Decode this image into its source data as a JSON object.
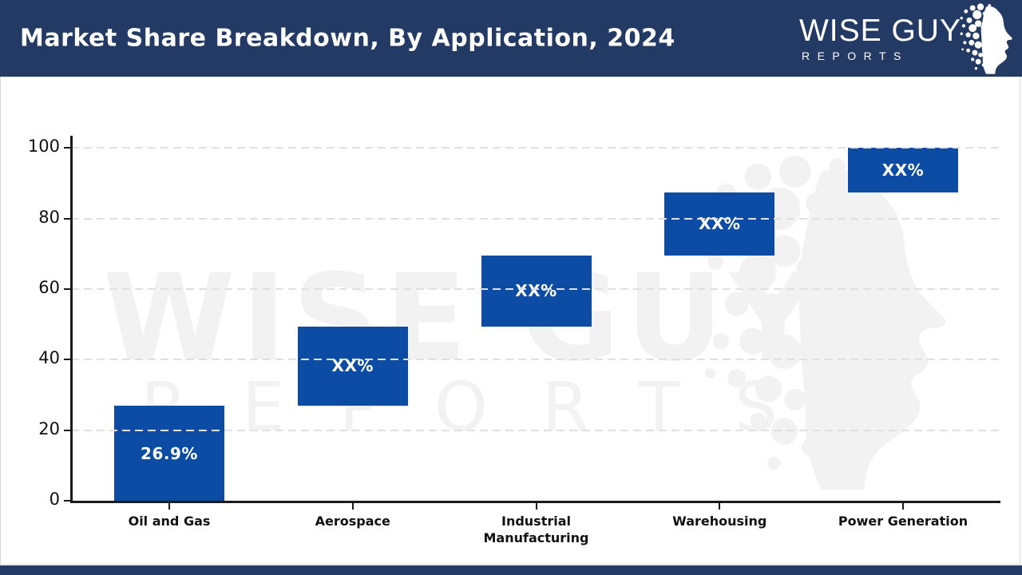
{
  "header": {
    "title": "Market Share Breakdown, By Application, 2024",
    "logo": {
      "line1": "WISE GUY",
      "line2": "REPORTS"
    }
  },
  "watermark": {
    "line1": "WISE GUY",
    "line2": "REPORTS"
  },
  "colors": {
    "header_bg": "#223a64",
    "footer_bg": "#223a64",
    "bar": "#0d4ca4",
    "bar_label": "#ffffff",
    "gridline": "#e0e0e0",
    "axis": "#1a1a1a",
    "tick_label": "#111111",
    "watermark": "#f2f2f2",
    "background": "#ffffff"
  },
  "chart_data": {
    "type": "bar",
    "subtype": "waterfall-floating-bars",
    "title": "Market Share Breakdown, By Application, 2024",
    "xlabel": "",
    "ylabel": "",
    "categories": [
      "Oil and Gas",
      "Aerospace",
      "Industrial Manufacturing",
      "Warehousing",
      "Power Generation"
    ],
    "segments": [
      {
        "category": "Oil and Gas",
        "start": 0,
        "end": 26.9,
        "span": 26.9,
        "label": "26.9%"
      },
      {
        "category": "Aerospace",
        "start": 26.9,
        "end": 49.4,
        "span": 22.5,
        "label": "XX%"
      },
      {
        "category": "Industrial Manufacturing",
        "start": 49.4,
        "end": 69.6,
        "span": 20.2,
        "label": "XX%"
      },
      {
        "category": "Warehousing",
        "start": 69.6,
        "end": 87.4,
        "span": 17.8,
        "label": "XX%"
      },
      {
        "category": "Power Generation",
        "start": 87.4,
        "end": 100,
        "span": 12.6,
        "label": "XX%"
      }
    ],
    "y_ticks": [
      0,
      20,
      40,
      60,
      80,
      100
    ],
    "ylim": [
      0,
      104
    ],
    "grid": "horizontal-dashed",
    "grid_above_bars": true,
    "legend": "none"
  }
}
